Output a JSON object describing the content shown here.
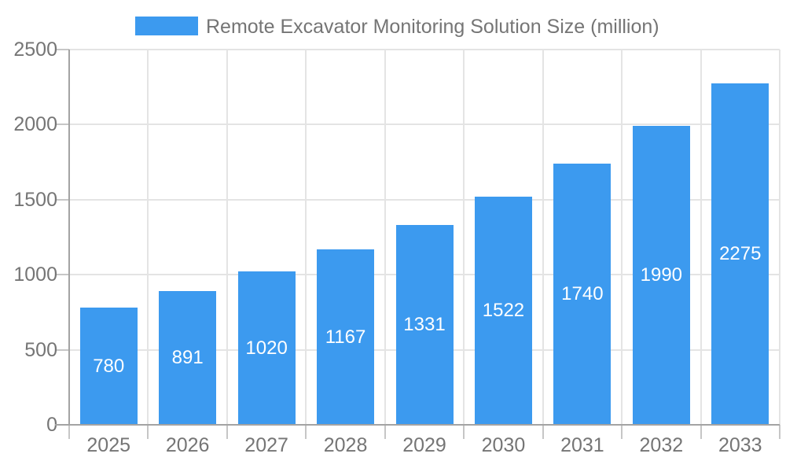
{
  "legend": {
    "label": "Remote Excavator Monitoring Solution Size (million)"
  },
  "chart_data": {
    "type": "bar",
    "title": "Remote Excavator Monitoring Solution Size (million)",
    "categories": [
      "2025",
      "2026",
      "2027",
      "2028",
      "2029",
      "2030",
      "2031",
      "2032",
      "2033"
    ],
    "values": [
      780,
      891,
      1020,
      1167,
      1331,
      1522,
      1740,
      1990,
      2275
    ],
    "xlabel": "",
    "ylabel": "",
    "ylim": [
      0,
      2500
    ],
    "yticks": [
      0,
      500,
      1000,
      1500,
      2000,
      2500
    ],
    "grid": true,
    "legend_position": "top",
    "value_label_position": "inside-center"
  },
  "colors": {
    "bar": "#3C9AEF",
    "value_label": "#FFFFFF",
    "text": "#757575",
    "gridline": "#E4E4E4",
    "axis_line": "#A3A3A3",
    "tick": "#C6C6C6",
    "background": "#FFFFFF"
  }
}
